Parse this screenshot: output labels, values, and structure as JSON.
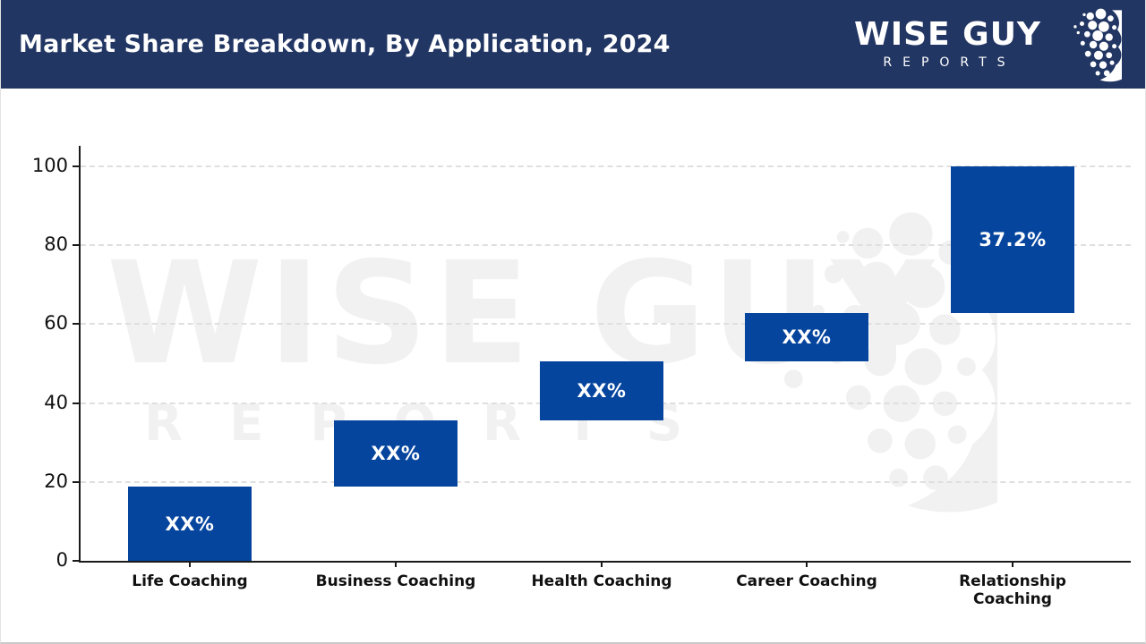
{
  "header": {
    "title": "Market Share Breakdown, By Application, 2024",
    "bg_color": "#223663",
    "text_color": "#ffffff",
    "logo": {
      "line1": "WISE GUY",
      "line2": "REPORTS",
      "head_icon": "dotted-head-profile-icon"
    }
  },
  "watermark": {
    "line1": "WISE GUY",
    "line2": "REPORTS",
    "head_icon": "dotted-head-profile-icon"
  },
  "chart_data": {
    "type": "bar",
    "subtype": "waterfall",
    "title": "Market Share Breakdown, By Application, 2024",
    "xlabel": "",
    "ylabel": "",
    "categories": [
      "Life Coaching",
      "Business Coaching",
      "Health Coaching",
      "Career Coaching",
      "Relationship Coaching"
    ],
    "segments": [
      {
        "category": "Life Coaching",
        "start": 0,
        "end": 18.8,
        "label": "XX%"
      },
      {
        "category": "Business Coaching",
        "start": 18.8,
        "end": 35.6,
        "label": "XX%"
      },
      {
        "category": "Health Coaching",
        "start": 35.6,
        "end": 50.6,
        "label": "XX%"
      },
      {
        "category": "Career Coaching",
        "start": 50.6,
        "end": 62.8,
        "label": "XX%"
      },
      {
        "category": "Relationship Coaching",
        "start": 62.8,
        "end": 100,
        "label": "37.2%"
      }
    ],
    "y_ticks": [
      0,
      20,
      40,
      60,
      80,
      100
    ],
    "ylim": [
      0,
      105
    ],
    "grid": "horizontal-dashed",
    "legend": "none",
    "bar_color": "#05459e",
    "bar_label_color": "#ffffff"
  }
}
